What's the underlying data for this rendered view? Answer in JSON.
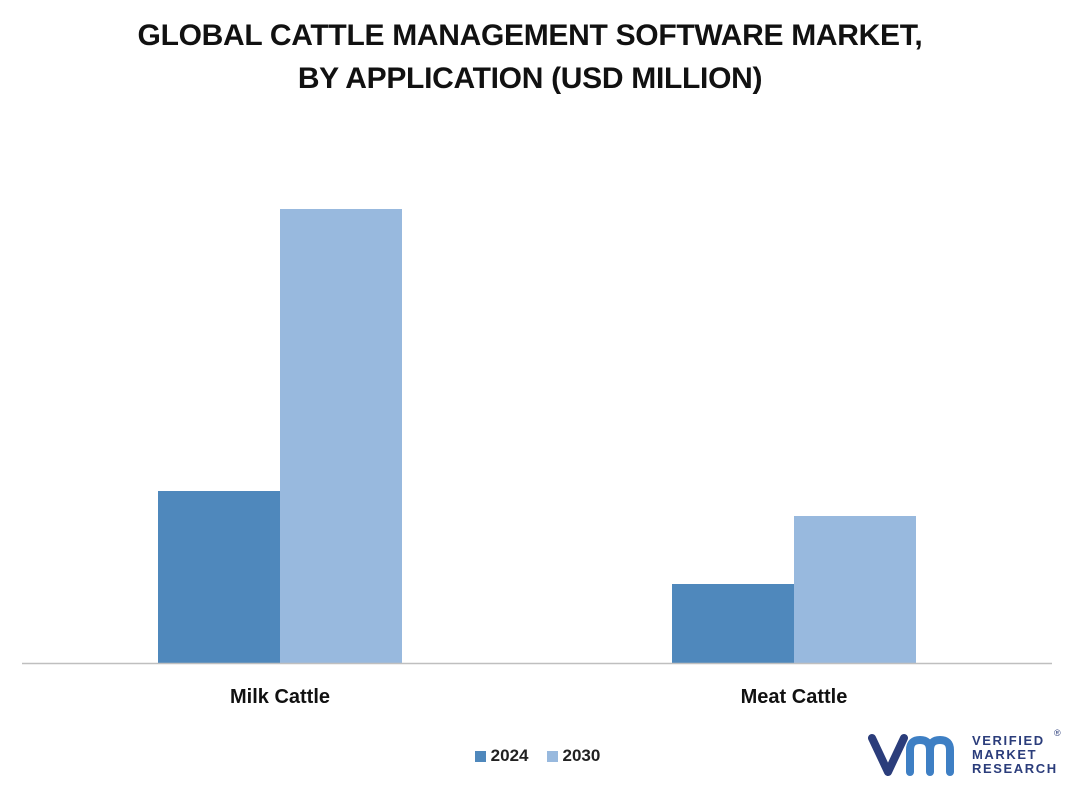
{
  "title_line1": "GLOBAL CATTLE MANAGEMENT SOFTWARE MARKET,",
  "title_line2": "BY APPLICATION (USD MILLION)",
  "colors": {
    "series_2024": "#4f88bc",
    "series_2030": "#98b9de",
    "axis": "#bfbfbf",
    "brand": "#2b3d7b"
  },
  "chart_data": {
    "type": "bar",
    "title": "GLOBAL CATTLE MANAGEMENT SOFTWARE MARKET, BY APPLICATION (USD MILLION)",
    "categories": [
      "Milk Cattle",
      "Meat Cattle"
    ],
    "series": [
      {
        "name": "2024",
        "values": [
          172,
          79
        ]
      },
      {
        "name": "2030",
        "values": [
          454,
          147
        ]
      }
    ],
    "ylim": [
      0,
      520
    ],
    "grid": false,
    "legend": "bottom-center",
    "xlabel": "",
    "ylabel": ""
  },
  "logo": {
    "line1": "VERIFIED",
    "line2": "MARKET",
    "line3": "RESEARCH",
    "reg": "®"
  }
}
